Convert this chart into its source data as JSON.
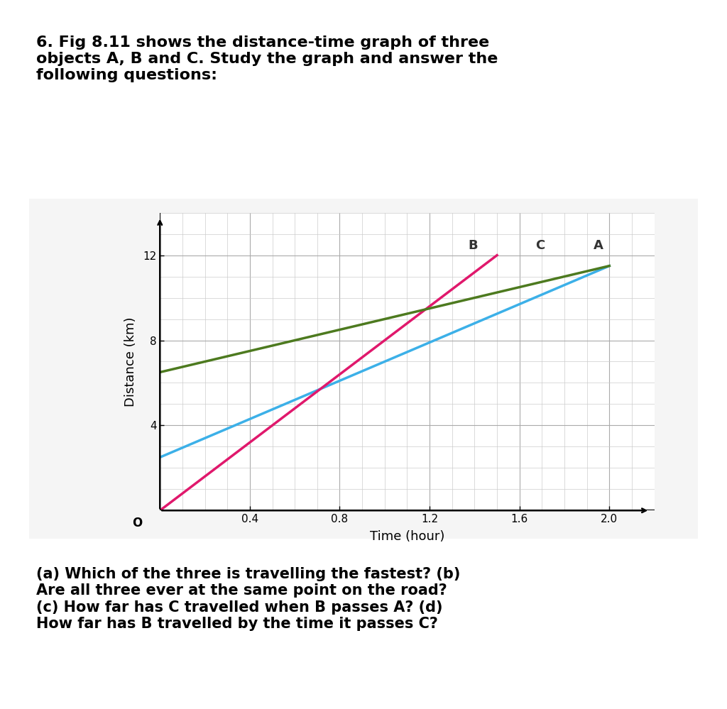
{
  "title_text": "6. Fig 8.11 shows the distance-time graph of three\nobjects A, B and C. Study the graph and answer the\nfollowing questions:",
  "footer_text": "(a) Which of the three is travelling the fastest? (b)\nAre all three ever at the same point on the road?\n(c) How far has C travelled when B passes A? (d)\nHow far has B travelled by the time it passes C?",
  "xlabel": "Time (hour)",
  "ylabel": "Distance (km)",
  "xlim": [
    0,
    2.2
  ],
  "ylim": [
    0,
    14
  ],
  "xticks": [
    0.4,
    0.8,
    1.2,
    1.6,
    2.0
  ],
  "yticks": [
    4,
    8,
    12
  ],
  "line_A": {
    "x": [
      0,
      2.0
    ],
    "y": [
      2.5,
      11.5
    ],
    "color": "#3cb0e8",
    "linewidth": 2.5,
    "label": "A"
  },
  "line_B": {
    "x": [
      0,
      1.5
    ],
    "y": [
      0,
      12.0
    ],
    "color": "#e0186c",
    "linewidth": 2.5,
    "label": "B"
  },
  "line_C": {
    "x": [
      0,
      2.0
    ],
    "y": [
      6.5,
      11.5
    ],
    "color": "#4d7a1f",
    "linewidth": 2.5,
    "label": "C"
  },
  "label_fontsize": 13,
  "tick_fontsize": 11,
  "bg_color": "#f0f0f0",
  "plot_bg": "#ffffff",
  "box_bg": "#f5f5f5"
}
